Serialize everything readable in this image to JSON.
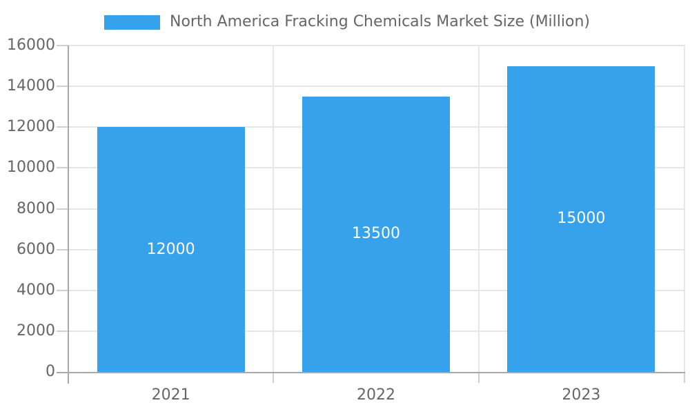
{
  "chart_data": {
    "type": "bar",
    "title": "North America Fracking Chemicals Market Size (Million)",
    "categories": [
      "2021",
      "2022",
      "2023"
    ],
    "values": [
      12000,
      13500,
      15000
    ],
    "data_labels": [
      "12000",
      "13500",
      "15000"
    ],
    "xlabel": "",
    "ylabel": "",
    "ylim": [
      0,
      16000
    ],
    "ytick_step": 2000,
    "yticks": [
      0,
      2000,
      4000,
      6000,
      8000,
      10000,
      12000,
      14000,
      16000
    ],
    "ytick_labels": [
      "0",
      "2000",
      "4000",
      "6000",
      "8000",
      "10000",
      "12000",
      "14000",
      "16000"
    ],
    "grid": true,
    "legend": {
      "position": "top",
      "label": "North America Fracking Chemicals Market Size (Million)"
    },
    "colors": {
      "bar": "#36A2EB",
      "axis_text": "#666666",
      "data_label": "#FFFFFF",
      "gridline": "#E6E6E6",
      "axis_line": "#A8A8A8",
      "tick": "#CFCFCF",
      "background": "#FFFFFF"
    }
  }
}
